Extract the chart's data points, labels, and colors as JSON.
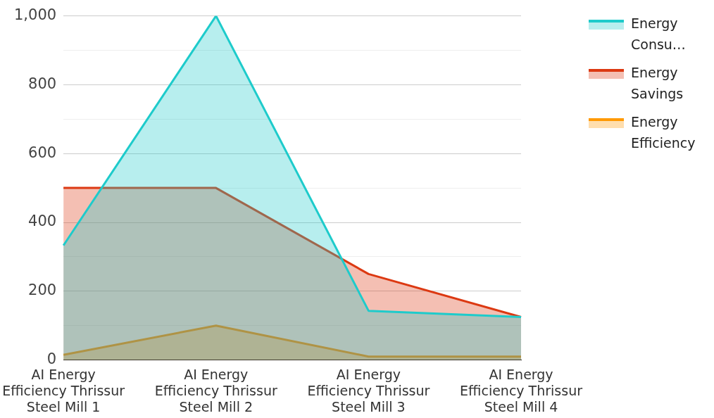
{
  "chart_data": {
    "type": "area",
    "categories": [
      "AI Energy Efficiency Thrissur Steel Mill 1",
      "AI Energy Efficiency Thrissur Steel Mill 2",
      "AI Energy Efficiency Thrissur Steel Mill 3",
      "AI Energy Efficiency Thrissur Steel Mill 4"
    ],
    "series": [
      {
        "name": "Energy Consu…",
        "color": "#1ecbcb",
        "values": [
          333,
          1000,
          143,
          125
        ]
      },
      {
        "name": "Energy Savings",
        "color": "#dc3912",
        "values": [
          500,
          500,
          250,
          125
        ]
      },
      {
        "name": "Energy Efficiency",
        "color": "#ff9900",
        "values": [
          15,
          100,
          10,
          10
        ]
      }
    ],
    "ylim": [
      0,
      1000
    ],
    "yticks": [
      0,
      {
        "value": 100,
        "label": null
      },
      200,
      {
        "value": 300,
        "label": null
      },
      400,
      {
        "value": 500,
        "label": null
      },
      600,
      {
        "value": 700,
        "label": null
      },
      800,
      {
        "value": 900,
        "label": null
      },
      {
        "value": 1000,
        "label": "1,000"
      }
    ],
    "grid": true,
    "legend": "right",
    "marker": "none"
  }
}
